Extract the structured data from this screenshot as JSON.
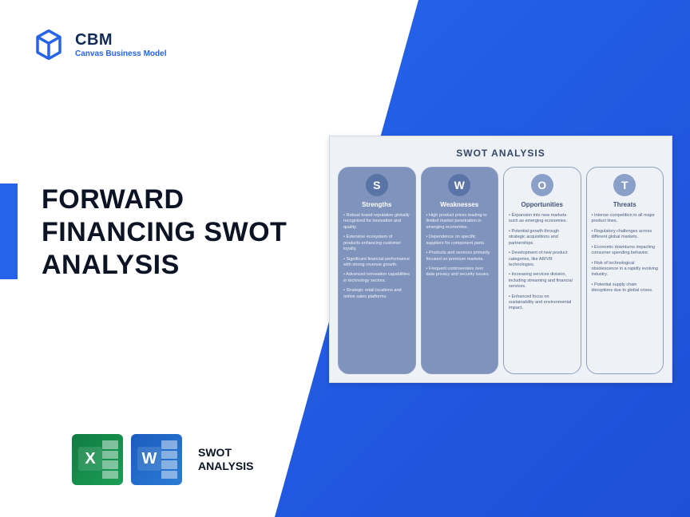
{
  "brand": {
    "acronym": "CBM",
    "tagline": "Canvas Business Model"
  },
  "headline": "FORWARD FINANCING SWOT ANALYSIS",
  "badges": {
    "excel_letter": "X",
    "word_letter": "W",
    "label_line1": "SWOT",
    "label_line2": "ANALYSIS"
  },
  "colors": {
    "brand_blue": "#2563eb",
    "panel_bg": "#eef1f6",
    "col_fill": "#7f93bc",
    "col_border": "#8fa0c2",
    "circle_dark": "#5b74a8",
    "circle_light": "#8aa0c8",
    "excel": "#107c41",
    "word": "#1b5cbe"
  },
  "swot": {
    "title": "SWOT ANALYSIS",
    "columns": [
      {
        "letter": "S",
        "heading": "Strengths",
        "style": "filled",
        "items": [
          "Robust brand reputation globally recognized for innovation and quality.",
          "Extensive ecosystem of products enhancing customer loyalty.",
          "Significant financial performance with strong revenue growth.",
          "Advanced innovation capabilities in technology sectors.",
          "Strategic retail locations and online sales platforms."
        ]
      },
      {
        "letter": "W",
        "heading": "Weaknesses",
        "style": "filled",
        "items": [
          "High product prices leading to limited market penetration in emerging economies.",
          "Dependence on specific suppliers for component parts.",
          "Products and services primarily focused on premium markets.",
          "Frequent controversies over data privacy and security issues."
        ]
      },
      {
        "letter": "O",
        "heading": "Opportunities",
        "style": "outlined",
        "items": [
          "Expansion into new markets such as emerging economies.",
          "Potential growth through strategic acquisitions and partnerships.",
          "Development of new product categories, like AR/VR technologies.",
          "Increasing services division, including streaming and financial services.",
          "Enhanced focus on sustainability and environmental impact."
        ]
      },
      {
        "letter": "T",
        "heading": "Threats",
        "style": "outlined",
        "items": [
          "Intense competition in all major product lines.",
          "Regulatory challenges across different global markets.",
          "Economic downturns impacting consumer spending behavior.",
          "Risk of technological obsolescence in a rapidly evolving industry.",
          "Potential supply chain disruptions due to global crises."
        ]
      }
    ]
  }
}
